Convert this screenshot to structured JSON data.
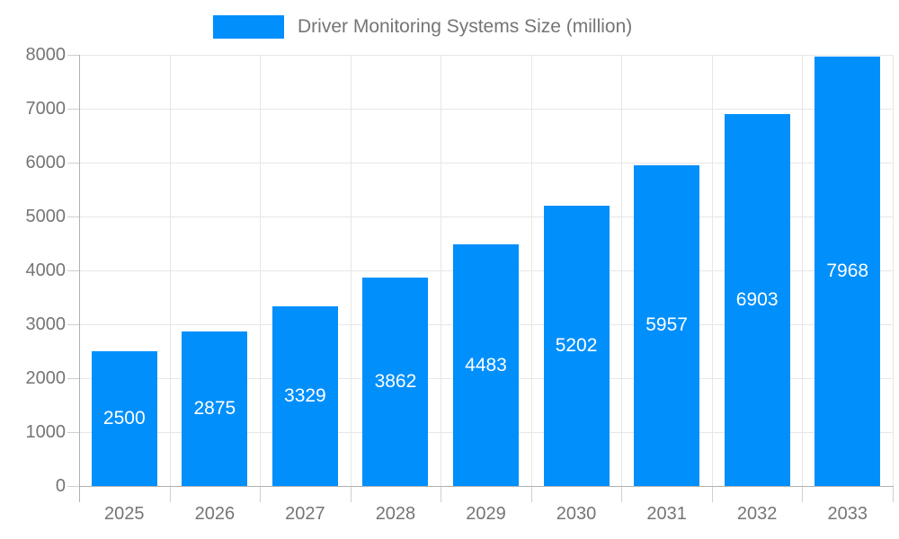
{
  "chart_data": {
    "type": "bar",
    "title": "",
    "legend": {
      "label": "Driver Monitoring Systems Size (million)",
      "position": "top"
    },
    "series_name": "Driver Monitoring Systems Size (million)",
    "categories": [
      "2025",
      "2026",
      "2027",
      "2028",
      "2029",
      "2030",
      "2031",
      "2032",
      "2033"
    ],
    "values": [
      2500,
      2875,
      3329,
      3862,
      4483,
      5202,
      5957,
      6903,
      7968
    ],
    "xlabel": "",
    "ylabel": "",
    "ylim": [
      0,
      8000
    ],
    "ytick_step": 1000,
    "ytick_labels": [
      "0",
      "1000",
      "2000",
      "3000",
      "4000",
      "5000",
      "6000",
      "7000",
      "8000"
    ],
    "grid": true,
    "value_labels_shown": true,
    "colors": {
      "bar": "#008FFB",
      "value_label": "#ffffff",
      "axis_text": "#757575",
      "legend_text": "#757575",
      "gridline": "#e7e7e7",
      "axis_line": "#b1b1b1",
      "tick": "#cfcfcf",
      "background": "#ffffff"
    }
  }
}
